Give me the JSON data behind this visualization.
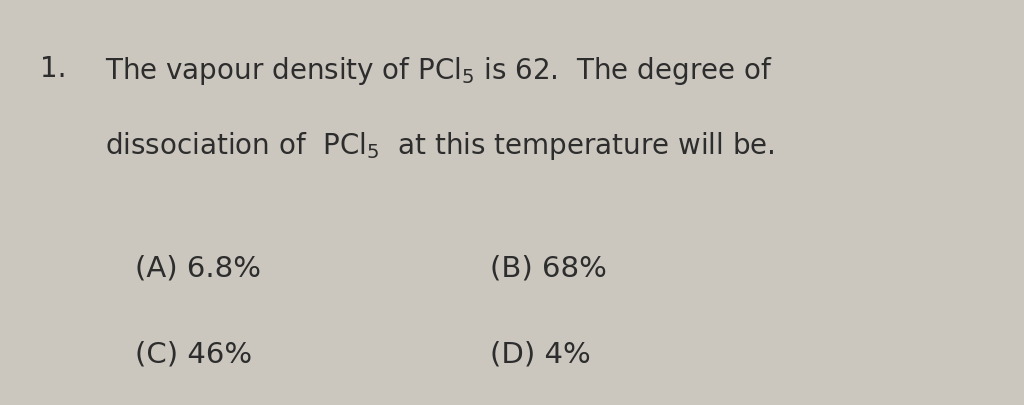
{
  "background_color": "#cbc7bf",
  "text_color": "#2d2d2d",
  "q_num": "1.",
  "line1_a": "The vapour density of PCl",
  "line1_sub": "5",
  "line1_b": " is 62. The degree of",
  "line2_a": "dissociation of PCl",
  "line2_sub": "5",
  "line2_b": " at this temperature will be.",
  "optA": "(A) 6.8%",
  "optB": "(B) 68%",
  "optC": "(C) 46%",
  "optD": "(D) 4%",
  "font_size_main": 20,
  "font_size_sub": 14,
  "font_size_opts": 21
}
